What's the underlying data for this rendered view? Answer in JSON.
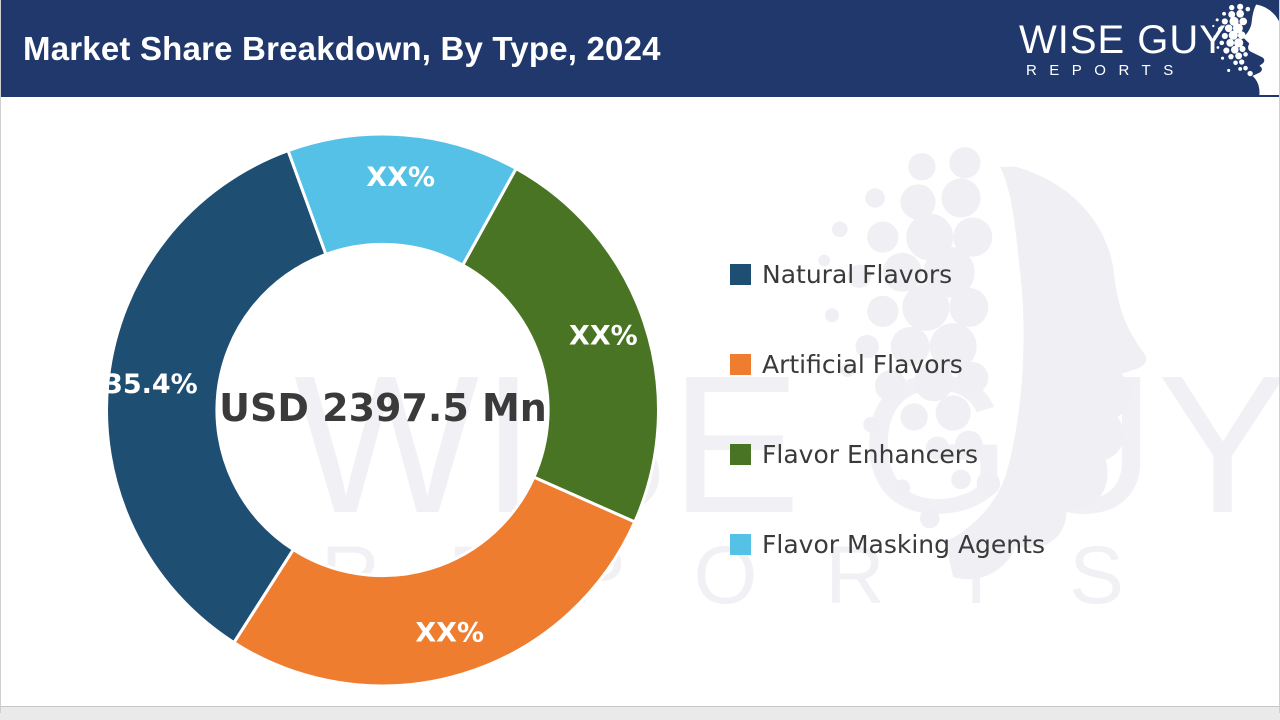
{
  "header": {
    "title": "Market Share Breakdown, By Type, 2024",
    "logo": {
      "name": "WISE GUY",
      "tagline": "REPORTS"
    }
  },
  "watermark": {
    "line1": "WISE GUY",
    "line2": "REPORTS"
  },
  "chart_data": {
    "type": "pie",
    "subtype": "donut",
    "title": "Market Share Breakdown, By Type, 2024",
    "center_label": "USD 2397.5 Mn",
    "categories": [
      "Natural Flavors",
      "Artificial Flavors",
      "Flavor Enhancers",
      "Flavor Masking Agents"
    ],
    "values": [
      35.4,
      27.4,
      23.6,
      13.6
    ],
    "values_estimated": [
      false,
      true,
      true,
      true
    ],
    "slice_labels": [
      "35.4%",
      "XX%",
      "XX%",
      "XX%"
    ],
    "colors": [
      "#1F4E73",
      "#EE7D30",
      "#497423",
      "#55C1E7"
    ],
    "start_angle_deg": 110,
    "counterclockwise": true,
    "inner_radius_ratio": 0.6,
    "legend_position": "right"
  },
  "legend": {
    "items": [
      {
        "label": "Natural Flavors",
        "color": "#1F4E73"
      },
      {
        "label": "Artificial Flavors",
        "color": "#EE7D30"
      },
      {
        "label": "Flavor Enhancers",
        "color": "#497423"
      },
      {
        "label": "Flavor Masking Agents",
        "color": "#55C1E7"
      }
    ]
  },
  "theme": {
    "header_bg": "#20386B",
    "text_dark": "#3A3A3A",
    "slice_label_color": "#FFFFFF",
    "watermark_color": "#F1F1F5",
    "page_bg": "#EAEAEB",
    "border": "#CFCFCF"
  }
}
